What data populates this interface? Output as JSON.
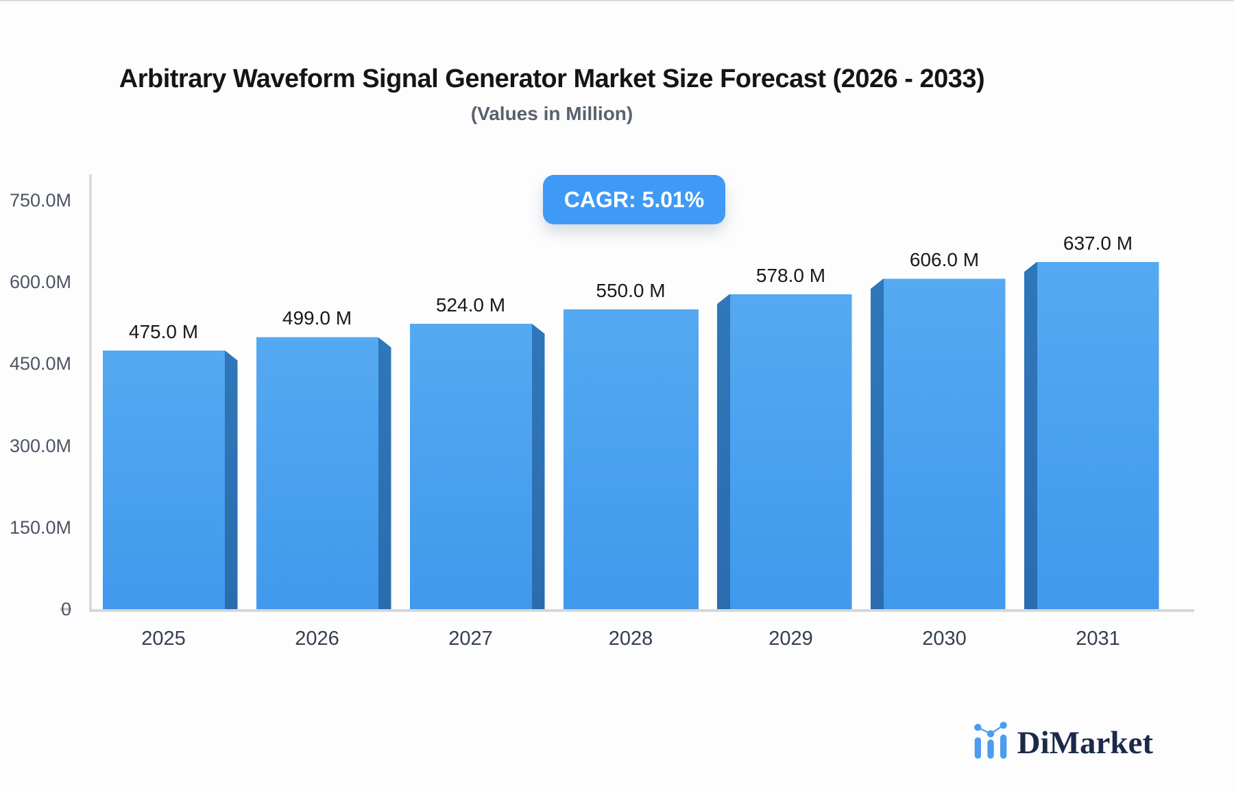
{
  "header": {
    "title": "Arbitrary Waveform Signal Generator Market Size Forecast (2026 - 2033)",
    "subtitle": "(Values in Million)"
  },
  "cagr_badge": {
    "label": "CAGR: 5.01%"
  },
  "chart_data": {
    "type": "bar",
    "title": "Arbitrary Waveform Signal Generator Market Size Forecast (2026 - 2033)",
    "subtitle": "(Values in Million)",
    "cagr": "5.01%",
    "categories": [
      "2025",
      "2026",
      "2027",
      "2028",
      "2029",
      "2030",
      "2031"
    ],
    "values": [
      475,
      499,
      524,
      550,
      578,
      606,
      637
    ],
    "bar_labels": [
      "475.0 M",
      "499.0 M",
      "524.0 M",
      "550.0 M",
      "578.0 M",
      "606.0 M",
      "637.0 M"
    ],
    "unit": "Million",
    "xlabel": "",
    "ylabel": "",
    "ylim": [
      0,
      750
    ],
    "grid": false,
    "legend": false,
    "y_ticks": [
      {
        "label": "750.0M",
        "value": 750
      },
      {
        "label": "600.0M",
        "value": 600
      },
      {
        "label": "450.0M",
        "value": 450
      },
      {
        "label": "300.0M",
        "value": 300
      },
      {
        "label": "150.0M",
        "value": 150
      },
      {
        "label": "0",
        "value": 0
      }
    ],
    "colors": {
      "bar_face": "#47a1ee",
      "bar_side": "#2d72b5",
      "badge": "#3f9af5",
      "axis": "#d6d7d9"
    }
  },
  "branding": {
    "logo_text": "DiMarket",
    "logo_icon": "bar-line-chart-icon",
    "icon_color": "#4a9df0",
    "text_color": "#1c2a49"
  }
}
